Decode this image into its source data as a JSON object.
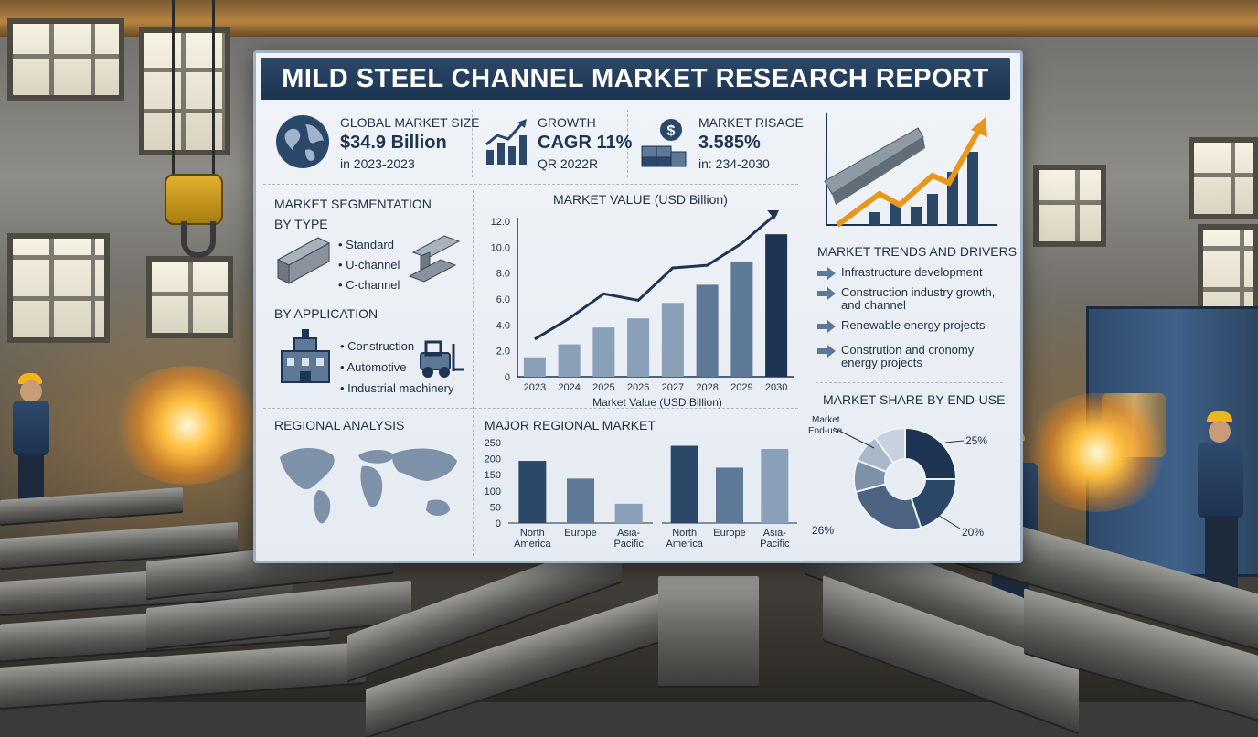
{
  "title": "MILD STEEL CHANNEL MARKET RESEARCH REPORT",
  "kpis": {
    "market_size": {
      "label": "GLOBAL MARKET SIZE",
      "value": "$34.9 Billion",
      "sub": "in 2023-2023"
    },
    "growth": {
      "label": "GROWTH",
      "value": "CAGR 11%",
      "sub": "QR 2022R"
    },
    "risage": {
      "label": "MARKET RISAGE",
      "value": "3.585%",
      "sub": "in: 234-2030"
    }
  },
  "segmentation": {
    "heading": "MARKET SEGMENTATION",
    "by_type_heading": "BY TYPE",
    "types": [
      "• Standard",
      "• U-channel",
      "• C-channel"
    ],
    "by_application_heading": "BY APPLICATION",
    "applications": [
      "• Construction",
      "• Automotive",
      "• Industrial machinery"
    ]
  },
  "regional_analysis_heading": "REGIONAL ANALYSIS",
  "trends": {
    "heading": "MARKET TRENDS AND DRIVERS",
    "items": [
      {
        "line1": "Infrastructure development",
        "line2": ""
      },
      {
        "line1": "Construction industry growth,",
        "line2": "and channel"
      },
      {
        "line1": "Renewable energy projects",
        "line2": ""
      },
      {
        "line1": "Constrution and cronomy",
        "line2": "energy projects"
      }
    ]
  },
  "colors": {
    "navy": "#1d3452",
    "bar_dark": "#2c4868",
    "bar_mid": "#5e7897",
    "bar_light": "#8a9fb8",
    "orange": "#e8961c",
    "panel_bg": "#eef2f7"
  },
  "icons": [
    "globe-icon",
    "growth-chart-icon",
    "money-cubes-icon",
    "trend-arrow-icon",
    "channel-beam-icon",
    "factory-icon",
    "forklift-icon",
    "world-map-icon",
    "arrow-right-icon"
  ],
  "chart_data": [
    {
      "type": "bar",
      "title": "MARKET VALUE (USD Billion)",
      "xlabel": "Market Value (USD Billion)",
      "ylabel": "",
      "categories": [
        "2023",
        "2024",
        "2025",
        "2026",
        "2027",
        "2028",
        "2029",
        "2030"
      ],
      "values": [
        1.5,
        2.5,
        3.8,
        4.5,
        5.7,
        7.1,
        8.9,
        11.0
      ],
      "trend_line": [
        2.9,
        4.5,
        6.4,
        5.9,
        8.4,
        8.6,
        10.3,
        13.0
      ],
      "ylim": [
        0,
        12
      ],
      "yticks": [
        "0",
        "2.0",
        "4.0",
        "6.0",
        "8.0",
        "10.0",
        "12.0"
      ],
      "grid": false
    },
    {
      "type": "bar",
      "title": "MAJOR REGIONAL MARKET",
      "categories": [
        {
          "line1": "North",
          "line2": "America"
        },
        {
          "line1": "Europe",
          "line2": ""
        },
        {
          "line1": "Asia-",
          "line2": "Pacific"
        }
      ],
      "series": [
        {
          "values": [
            193,
            138,
            60
          ]
        },
        {
          "values": [
            240,
            172,
            230
          ]
        }
      ],
      "ylim": [
        0,
        250
      ],
      "yticks": [
        "0",
        "50",
        "100",
        "150",
        "200",
        "250"
      ]
    },
    {
      "type": "pie",
      "title": "MARKET SHARE BY END-USE",
      "center_label": [
        "Market",
        "End-use"
      ],
      "slices": [
        25,
        20,
        26,
        10,
        9,
        10
      ],
      "slice_labels": [
        "25%",
        "20%",
        "26%"
      ]
    }
  ]
}
